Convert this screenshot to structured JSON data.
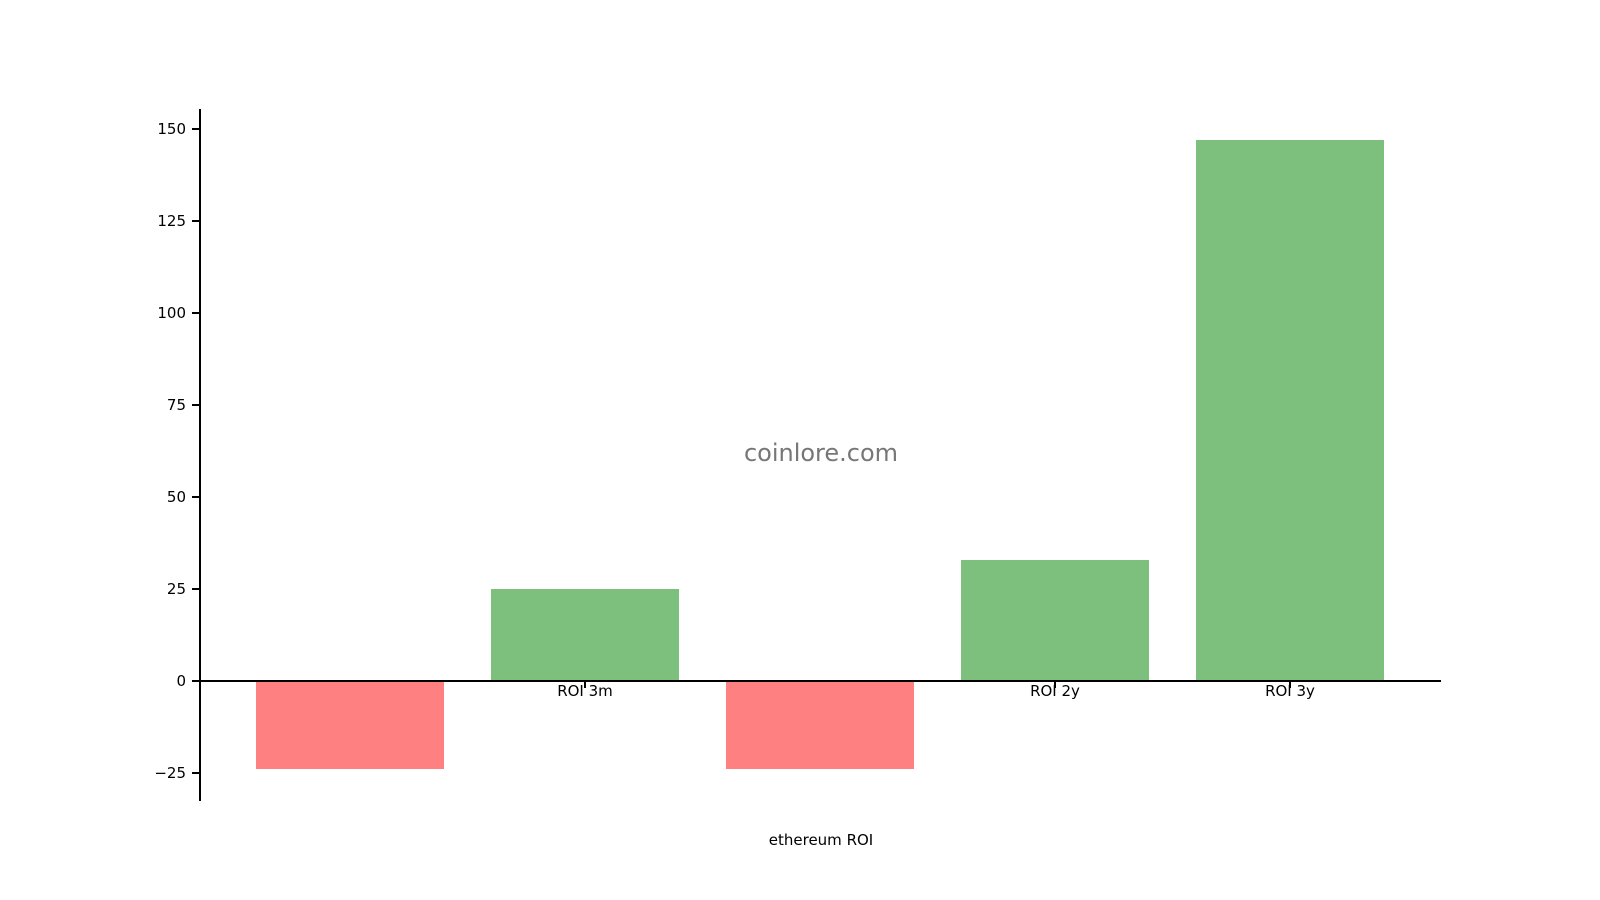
{
  "page": {
    "background": "#ffffff"
  },
  "chart_data": {
    "type": "bar",
    "title": "",
    "xlabel": "ethereum ROI",
    "ylabel": "",
    "watermark": "coinlore.com",
    "categories": [
      "",
      "ROI 3m",
      "",
      "ROI 2y",
      "ROI 3y"
    ],
    "values": [
      -24,
      25,
      -24,
      33,
      147
    ],
    "bar_colors": [
      "#ff8080",
      "#7dbf7d",
      "#ff8080",
      "#7dbf7d",
      "#7dbf7d"
    ],
    "positive_color": "#7dbf7d",
    "negative_color": "#ff8080",
    "axis_color": "#000000",
    "watermark_color": "#777777",
    "y_ticks": [
      {
        "value": 150,
        "label": "150"
      },
      {
        "value": 125,
        "label": "125"
      },
      {
        "value": 100,
        "label": "100"
      },
      {
        "value": 75,
        "label": "75"
      },
      {
        "value": 50,
        "label": "50"
      },
      {
        "value": 25,
        "label": "25"
      },
      {
        "value": 0,
        "label": "0"
      },
      {
        "value": -25,
        "label": "−25"
      }
    ],
    "ylim": [
      -32.6,
      155.4
    ],
    "grid": false,
    "legend": null
  }
}
